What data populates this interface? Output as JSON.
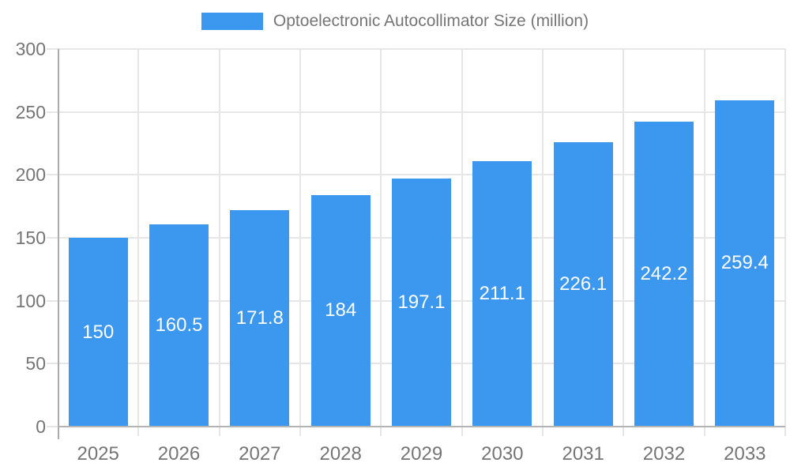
{
  "chart_data": {
    "type": "bar",
    "title": "Optoelectronic Autocollimator Size (million)",
    "categories": [
      "2025",
      "2026",
      "2027",
      "2028",
      "2029",
      "2030",
      "2031",
      "2032",
      "2033"
    ],
    "values": [
      150,
      160.5,
      171.8,
      184,
      197.1,
      211.1,
      226.1,
      242.2,
      259.4
    ],
    "value_labels": [
      "150",
      "160.5",
      "171.8",
      "184",
      "197.1",
      "211.1",
      "226.1",
      "242.2",
      "259.4"
    ],
    "xlabel": "",
    "ylabel": "",
    "ylim": [
      0,
      300
    ],
    "y_ticks": [
      0,
      50,
      100,
      150,
      200,
      250,
      300
    ],
    "grid": true,
    "legend_position": "top",
    "colors": {
      "bar": "#3B98EE",
      "bar_label_text": "#FFFFFF",
      "axis_text": "#757575",
      "gridline": "#E6E6E6",
      "axis_line": "#ABABAB",
      "baseline": "#B3B3B3",
      "background": "#FFFFFF"
    }
  }
}
